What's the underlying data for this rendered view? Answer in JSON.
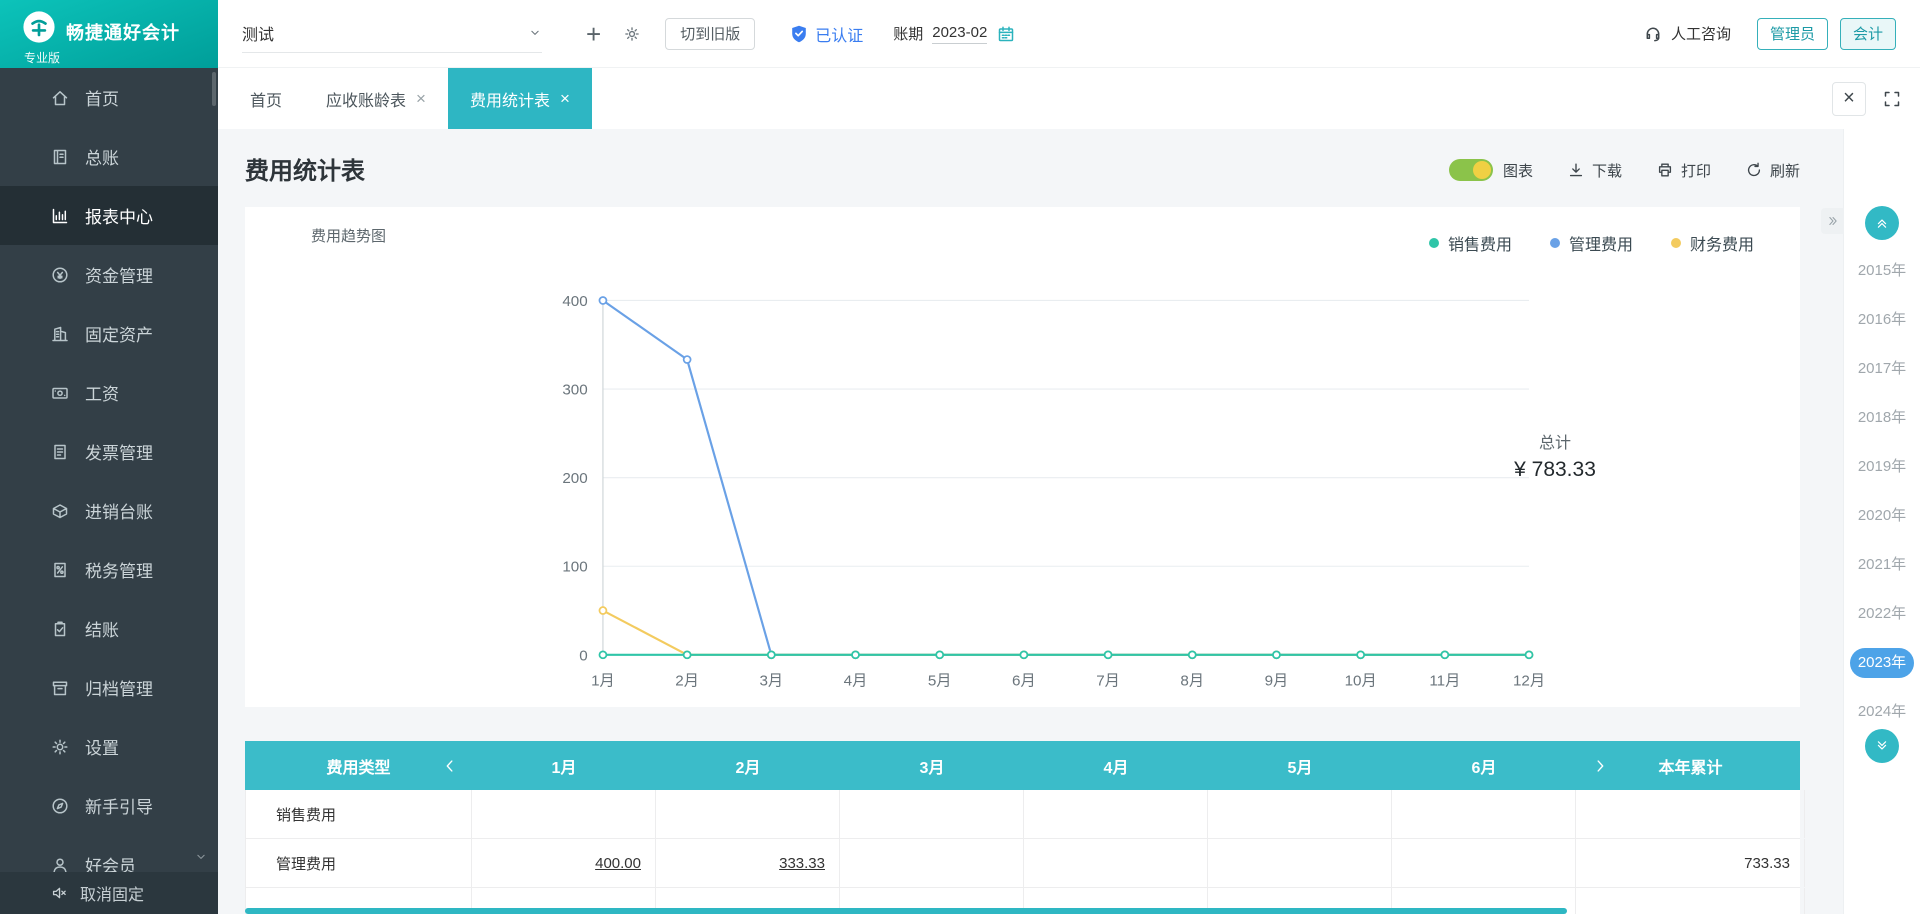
{
  "brand": {
    "title": "畅捷通好会计",
    "subtitle": "专业版"
  },
  "topbar": {
    "company": "测试",
    "switch_old_label": "切到旧版",
    "certified_label": "已认证",
    "period_label": "账期",
    "period_value": "2023-02",
    "consult_label": "人工咨询",
    "admin_label": "管理员",
    "accountant_label": "会计"
  },
  "sidebar": {
    "active_index": 2,
    "items": [
      {
        "label": "首页",
        "icon": "home"
      },
      {
        "label": "总账",
        "icon": "ledger"
      },
      {
        "label": "报表中心",
        "icon": "report"
      },
      {
        "label": "资金管理",
        "icon": "fund"
      },
      {
        "label": "固定资产",
        "icon": "asset"
      },
      {
        "label": "工资",
        "icon": "salary"
      },
      {
        "label": "发票管理",
        "icon": "invoice"
      },
      {
        "label": "进销台账",
        "icon": "inventory"
      },
      {
        "label": "税务管理",
        "icon": "tax"
      },
      {
        "label": "结账",
        "icon": "closing"
      },
      {
        "label": "归档管理",
        "icon": "archive"
      },
      {
        "label": "设置",
        "icon": "settings"
      },
      {
        "label": "新手引导",
        "icon": "guide"
      },
      {
        "label": "好会员",
        "icon": "member"
      }
    ],
    "unpin_label": "取消固定"
  },
  "tabs": [
    {
      "label": "首页",
      "closable": false,
      "active": false
    },
    {
      "label": "应收账龄表",
      "closable": true,
      "active": false
    },
    {
      "label": "费用统计表",
      "closable": true,
      "active": true
    }
  ],
  "page": {
    "title": "费用统计表",
    "toggle_label": "图表",
    "download_label": "下载",
    "print_label": "打印",
    "refresh_label": "刷新"
  },
  "chart_data": [
    {
      "type": "line",
      "title": "费用趋势图",
      "x": [
        "1月",
        "2月",
        "3月",
        "4月",
        "5月",
        "6月",
        "7月",
        "8月",
        "9月",
        "10月",
        "11月",
        "12月"
      ],
      "series": [
        {
          "name": "销售费用",
          "color": "#2fc5a8",
          "values": [
            0,
            0,
            0,
            0,
            0,
            0,
            0,
            0,
            0,
            0,
            0,
            0
          ]
        },
        {
          "name": "管理费用",
          "color": "#6aa1e6",
          "values": [
            400,
            333.33,
            0,
            0,
            0,
            0,
            0,
            0,
            0,
            0,
            0,
            0
          ]
        },
        {
          "name": "财务费用",
          "color": "#f3cb5f",
          "values": [
            50,
            0,
            0,
            0,
            0,
            0,
            0,
            0,
            0,
            0,
            0,
            0
          ]
        }
      ],
      "ylim": [
        0,
        400
      ],
      "yticks": [
        0,
        100,
        200,
        300,
        400
      ],
      "grid": true,
      "legend_position": "top-right"
    },
    {
      "type": "pie",
      "center_label": "总计",
      "center_value": "¥ 783.33",
      "slices": [
        {
          "name": "管理费用",
          "value": 733.33,
          "color": "#6aa1e6"
        },
        {
          "name": "财务费用",
          "value": 50,
          "color": "#f3cb5f"
        },
        {
          "name": "销售费用",
          "value": 0,
          "color": "#2fc5a8"
        }
      ]
    }
  ],
  "table": {
    "headers": [
      "费用类型",
      "1月",
      "2月",
      "3月",
      "4月",
      "5月",
      "6月",
      "本年累计"
    ],
    "rows": [
      {
        "type": "销售费用",
        "cells": [
          "",
          "",
          "",
          "",
          "",
          "",
          ""
        ],
        "link_cols": []
      },
      {
        "type": "管理费用",
        "cells": [
          "400.00",
          "333.33",
          "",
          "",
          "",
          "",
          "733.33"
        ],
        "link_cols": [
          0,
          1
        ]
      }
    ]
  },
  "year_panel": {
    "years": [
      "2015年",
      "2016年",
      "2017年",
      "2018年",
      "2019年",
      "2020年",
      "2021年",
      "2022年",
      "2023年",
      "2024年"
    ],
    "selected": "2023年"
  },
  "colors": {
    "accent": "#2eb6c3",
    "table_header": "#3bbcc9",
    "year_selected": "#4da3e8",
    "sidebar": "#333f47"
  }
}
